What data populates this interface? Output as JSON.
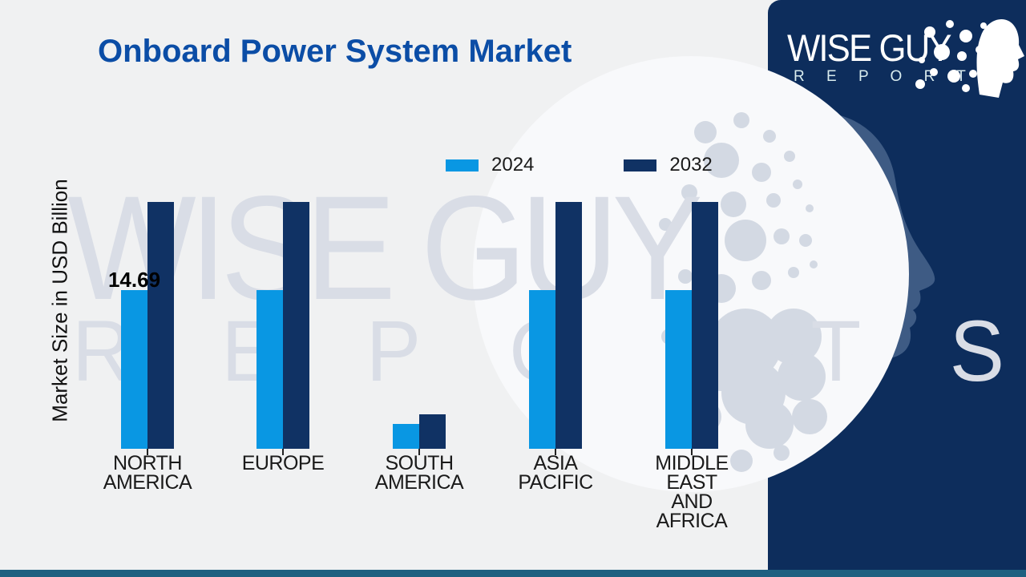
{
  "title": "Onboard Power System Market",
  "logo": {
    "line1": "WISE GUY",
    "line2": "R E P O R T S",
    "icon": "dotted-face-profile-icon",
    "badge_color": "#0d2d5c"
  },
  "watermark": {
    "line1": "WISE GUY",
    "line2": "R E P O R T S",
    "icon": "dotted-face-watermark"
  },
  "footer": {
    "strip_color": "#1e6080"
  },
  "colors": {
    "background": "#f0f1f2",
    "title_blue": "#0b4da6",
    "series_2024": "#0997e3",
    "series_2032": "#103264",
    "navy_decoration": "#0d2d5c",
    "face_silhouette": "#3e5b84",
    "watermark_gray": "#d9dde6",
    "footer_teal": "#1e6080"
  },
  "chart_data": {
    "type": "bar",
    "title": "Onboard Power System Market",
    "xlabel": "",
    "ylabel": "Market Size in USD Billion",
    "categories": [
      "NORTH AMERICA",
      "EUROPE",
      "SOUTH AMERICA",
      "ASIA PACIFIC",
      "MIDDLE EAST AND AFRICA"
    ],
    "category_lines": [
      [
        "NORTH",
        "AMERICA"
      ],
      [
        "EUROPE"
      ],
      [
        "SOUTH",
        "AMERICA"
      ],
      [
        "ASIA",
        "PACIFIC"
      ],
      [
        "MIDDLE",
        "EAST",
        "AND",
        "AFRICA"
      ]
    ],
    "series": [
      {
        "name": "2024",
        "color": "#0997e3",
        "values": [
          14.69,
          14.69,
          2.3,
          14.69,
          14.69
        ]
      },
      {
        "name": "2032",
        "color": "#103264",
        "values": [
          22.9,
          22.9,
          3.2,
          22.9,
          22.9
        ]
      }
    ],
    "data_labels": [
      {
        "series_index": 0,
        "category_index": 0,
        "text": "14.69"
      }
    ],
    "ylim": [
      0,
      25
    ],
    "grid": false,
    "legend_position": "top-center",
    "y_axis_ticks_visible": false,
    "baseline_visible": false
  }
}
